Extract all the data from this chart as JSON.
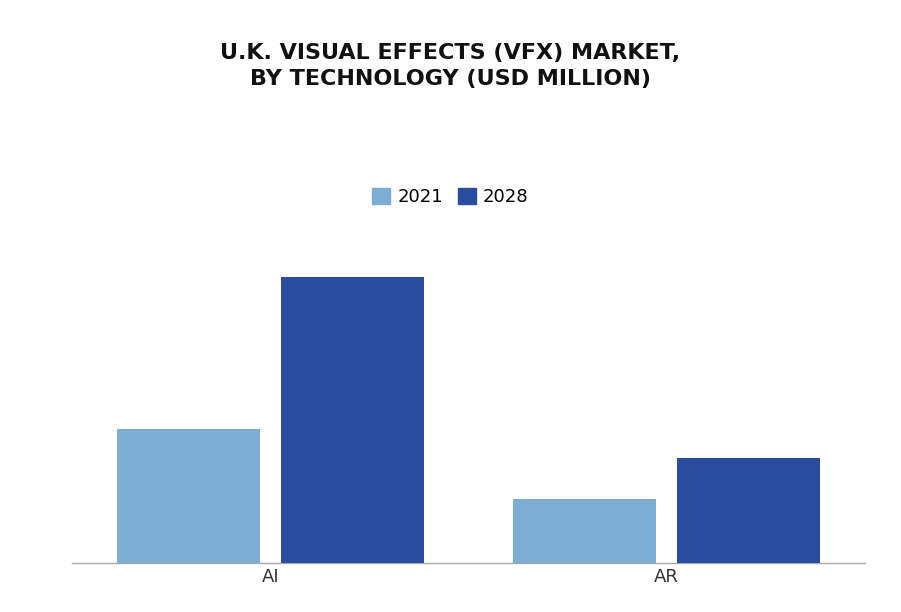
{
  "title": "U.K. VISUAL EFFECTS (VFX) MARKET,\nBY TECHNOLOGY (USD MILLION)",
  "categories": [
    "AI",
    "AR"
  ],
  "values_2021": [
    42,
    20
  ],
  "values_2028": [
    90,
    33
  ],
  "color_2021": "#7eadd4",
  "color_2028": "#2b4da0",
  "legend_labels": [
    "2021",
    "2028"
  ],
  "bar_width": 0.18,
  "x_positions": [
    0.25,
    0.75
  ],
  "ylim": [
    0,
    100
  ],
  "xlim": [
    0,
    1
  ],
  "background_color": "#ffffff",
  "title_fontsize": 16,
  "tick_fontsize": 13,
  "legend_fontsize": 13
}
